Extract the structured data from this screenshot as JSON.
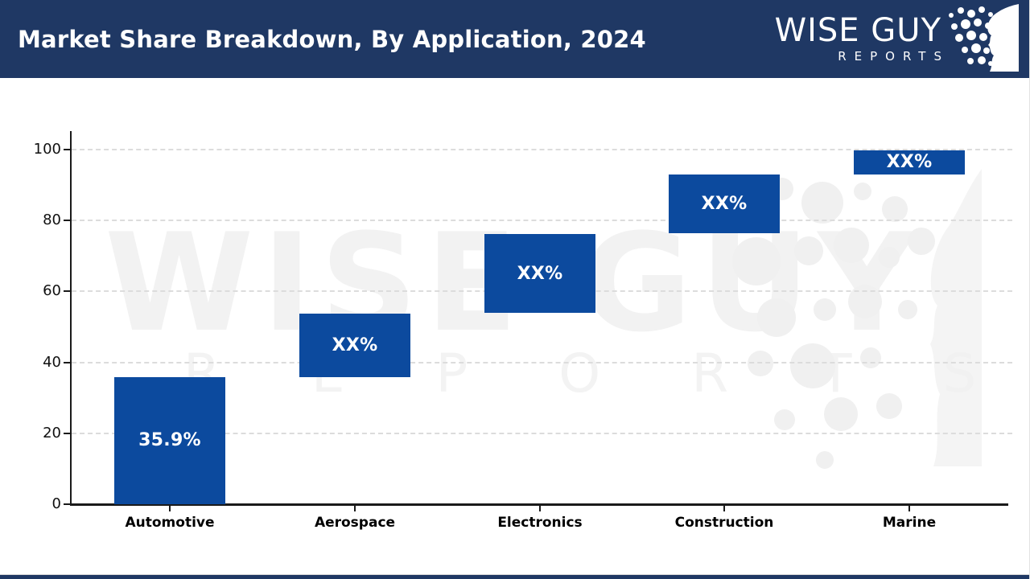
{
  "header": {
    "title": "Market Share Breakdown, By Application, 2024",
    "logo_line1": "WISE GUY",
    "logo_line2": "REPORTS"
  },
  "watermark": {
    "line1": "WISE GUY",
    "line2": "R E P O R T S"
  },
  "colors": {
    "header_bg": "#1f3864",
    "bar": "#0c4a9e",
    "gridline": "#dcdcdc",
    "axis": "#1a1a1a",
    "bar_label_text": "#ffffff",
    "watermark": "#f2f2f2"
  },
  "chart_data": {
    "type": "bar",
    "variant": "floating-waterfall",
    "title": "Market Share Breakdown, By Application, 2024",
    "categories": [
      "Automotive",
      "Aerospace",
      "Electronics",
      "Construction",
      "Marine"
    ],
    "segments": [
      {
        "category": "Automotive",
        "start": 0,
        "end": 35.9,
        "label": "35.9%"
      },
      {
        "category": "Aerospace",
        "start": 35.9,
        "end": 53.8,
        "label": "XX%"
      },
      {
        "category": "Electronics",
        "start": 53.9,
        "end": 76.2,
        "label": "XX%"
      },
      {
        "category": "Construction",
        "start": 76.4,
        "end": 93.0,
        "label": "XX%"
      },
      {
        "category": "Marine",
        "start": 93.0,
        "end": 99.8,
        "label": "XX%"
      }
    ],
    "ylim": [
      0,
      100
    ],
    "yticks": [
      0,
      20,
      40,
      60,
      80,
      100
    ],
    "xlabel": "",
    "ylabel": "",
    "grid": "horizontal-dashed",
    "legend": "none"
  }
}
